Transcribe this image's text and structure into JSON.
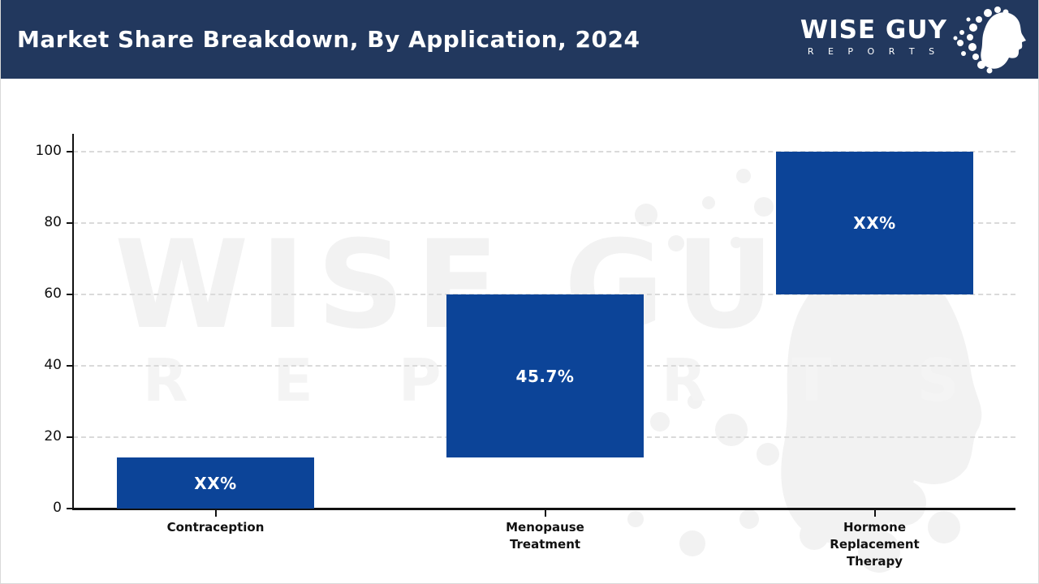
{
  "header": {
    "title": "Market Share Breakdown, By Application, 2024",
    "logo": {
      "wordmark": "WISE GUY",
      "subtext": "R E P O R T S"
    }
  },
  "watermark": {
    "wordmark": "WISE GUY",
    "subtext": "R E P O R T S"
  },
  "colors": {
    "header_bg": "#22385E",
    "bar_fill": "#0C4498",
    "bar_label_text": "#FFFFFF",
    "axis": "#111111",
    "gridline": "#DADADA",
    "watermark": "#F2F2F2",
    "page_border": "#D9D9D9"
  },
  "chart_data": {
    "type": "bar",
    "subtype": "floating-waterfall",
    "title": "Market Share Breakdown, By Application, 2024",
    "categories": [
      "Contraception",
      "Menopause Treatment",
      "Hormone Replacement Therapy"
    ],
    "category_lines": [
      [
        "Contraception"
      ],
      [
        "Menopause",
        "Treatment"
      ],
      [
        "Hormone",
        "Replacement",
        "Therapy"
      ]
    ],
    "series": [
      {
        "name": "Market Share (%)",
        "segments": [
          {
            "category": "Contraception",
            "start": 0,
            "end": 14.3,
            "value": 14.3,
            "label": "XX%"
          },
          {
            "category": "Menopause Treatment",
            "start": 14.3,
            "end": 60,
            "value": 45.7,
            "label": "45.7%"
          },
          {
            "category": "Hormone Replacement Therapy",
            "start": 60,
            "end": 100,
            "value": 40,
            "label": "XX%"
          }
        ]
      }
    ],
    "xlabel": "",
    "ylabel": "",
    "ylim": [
      0,
      105
    ],
    "yticks": [
      0,
      20,
      40,
      60,
      80,
      100
    ],
    "grid": "dashed-horizontal",
    "legend": "none"
  }
}
